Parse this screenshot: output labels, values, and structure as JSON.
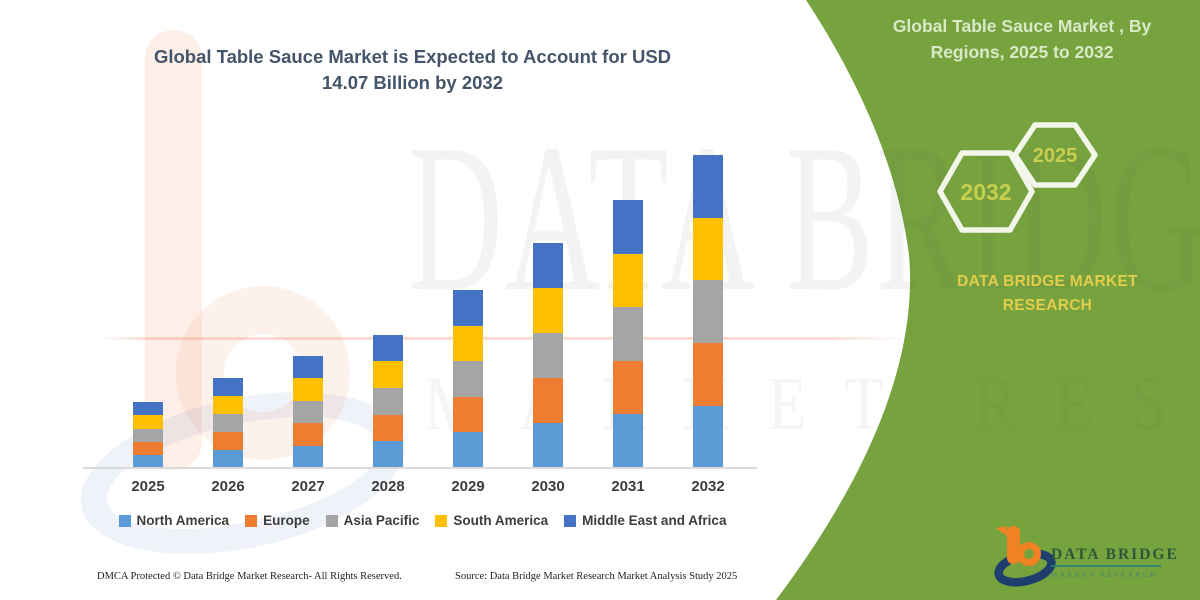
{
  "left_panel": {
    "title_line1": "Global Table Sauce Market is Expected to Account for USD",
    "title_line2": "14.07 Billion by 2032"
  },
  "chart_data": {
    "type": "bar",
    "stacked": true,
    "title": "Global Table Sauce Market is Expected to Account for USD 14.07 Billion by 2032",
    "unit": "USD Billion",
    "categories": [
      "2025",
      "2026",
      "2027",
      "2028",
      "2029",
      "2030",
      "2031",
      "2032"
    ],
    "series": [
      {
        "name": "North America",
        "color": "#5B9BD5",
        "values": [
          0.59,
          0.81,
          1.01,
          1.2,
          1.6,
          2.02,
          2.41,
          2.81
        ]
      },
      {
        "name": "Europe",
        "color": "#ED7D31",
        "values": [
          0.6,
          0.81,
          1.0,
          1.19,
          1.6,
          2.02,
          2.41,
          2.82
        ]
      },
      {
        "name": "Asia Pacific",
        "color": "#A5A5A5",
        "values": [
          0.59,
          0.8,
          1.01,
          1.2,
          1.6,
          2.02,
          2.41,
          2.81
        ]
      },
      {
        "name": "South America",
        "color": "#FFC000",
        "values": [
          0.6,
          0.81,
          1.01,
          1.2,
          1.6,
          2.03,
          2.41,
          2.82
        ]
      },
      {
        "name": "Middle East and Africa",
        "color": "#4472C4",
        "values": [
          0.59,
          0.81,
          1.0,
          1.19,
          1.6,
          2.02,
          2.41,
          2.81
        ]
      }
    ],
    "totals": [
      2.97,
      4.04,
      5.03,
      5.98,
      8.0,
      10.11,
      12.05,
      14.07
    ],
    "ylim": [
      0,
      15
    ],
    "grid": false,
    "y_axis_visible": false,
    "legend_position": "bottom"
  },
  "footer": {
    "copyright": "DMCA Protected © Data Bridge Market Research- All Rights Reserved.",
    "source": "Source: Data Bridge Market Research Market Analysis Study 2025"
  },
  "right_panel": {
    "title_line1": "Global Table Sauce Market , By",
    "title_line2": "Regions, 2025 to 2032",
    "hexagons": [
      {
        "label": "2032"
      },
      {
        "label": "2025"
      }
    ],
    "brand_line1": "DATA BRIDGE MARKET",
    "brand_line2": "RESEARCH"
  },
  "logo": {
    "name": "DATA BRIDGE",
    "subtext": "MARKET RESEARCH"
  },
  "watermark": {
    "line1": "DATA BRIDGE",
    "line2": "MARKET RESEARCH"
  },
  "colors": {
    "green_panel": "#76a33e",
    "chart_title_text": "#44546A",
    "panel_title_text": "#d9e9c8",
    "brand_gold": "#e3cd4c",
    "hexagon_stroke": "#f3f7ea",
    "hexagon_label": "#c8cf4f",
    "axis_line": "#d9d9d9",
    "year_label_text": "#3d3d3d",
    "legend_text": "#3d3d3d",
    "footer_text": "#1f1f1f",
    "logo_orange": "#f08223",
    "logo_navy": "#1e3f6e",
    "logo_text_green": "#2e5639"
  }
}
